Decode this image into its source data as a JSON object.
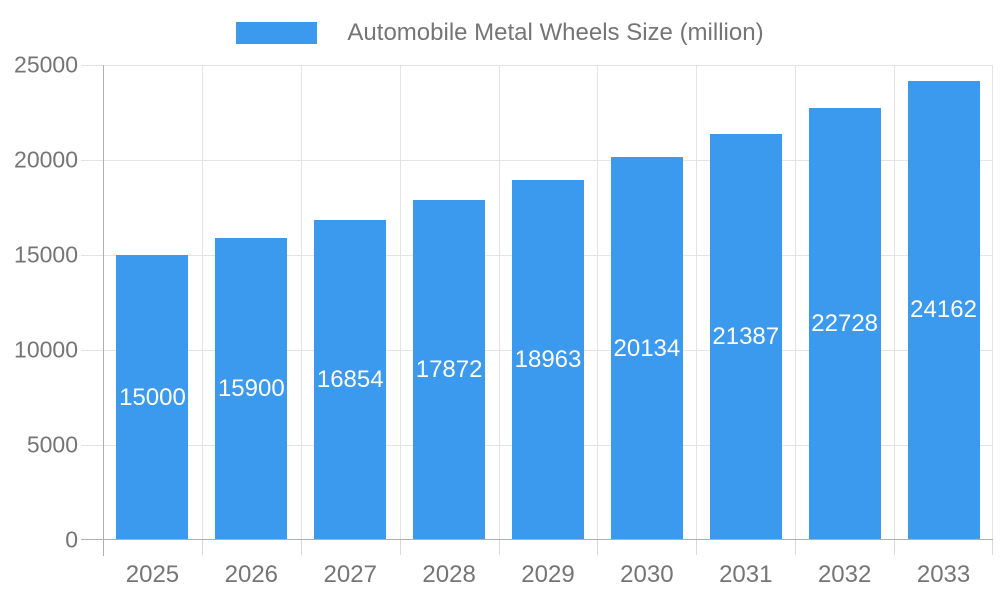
{
  "legend": {
    "position": "top-center",
    "items": [
      {
        "label": "Automobile Metal Wheels Size (million)",
        "color": "#3B99EE"
      }
    ]
  },
  "chart_data": {
    "type": "bar",
    "title": "Automobile Metal Wheels Size (million)",
    "categories": [
      "2025",
      "2026",
      "2027",
      "2028",
      "2029",
      "2030",
      "2031",
      "2032",
      "2033"
    ],
    "series": [
      {
        "name": "Automobile Metal Wheels Size (million)",
        "values": [
          15000,
          15900,
          16854,
          17872,
          18963,
          20134,
          21387,
          22728,
          24162
        ]
      }
    ],
    "bar_value_labels": [
      "15000",
      "15900",
      "16854",
      "17872",
      "18963",
      "20134",
      "21387",
      "22728",
      "24162"
    ],
    "value_label_position": "center-inside",
    "xlabel": "",
    "ylabel": "",
    "ylim": [
      0,
      25000
    ],
    "y_ticks": [
      0,
      5000,
      10000,
      15000,
      20000,
      25000
    ],
    "y_tick_labels": [
      "0",
      "5000",
      "10000",
      "15000",
      "20000",
      "25000"
    ],
    "grid": true,
    "legend_position": "top-center"
  },
  "colors": {
    "bar": "#3B99EE",
    "bar_label": "#ffffff",
    "axis_line": "#b0b0b0",
    "grid_line": "#e4e4e4",
    "tick_mark": "#d9d9d9",
    "axis_text": "#757575",
    "legend_text": "#757575",
    "background": "#ffffff"
  }
}
